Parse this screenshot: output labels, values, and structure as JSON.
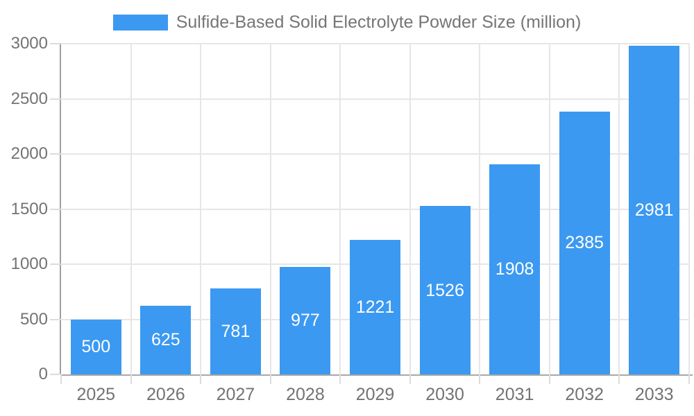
{
  "chart_data": {
    "type": "bar",
    "title": "Sulfide-Based Solid Electrolyte Powder Size (million)",
    "legend": {
      "position": "top",
      "entries": [
        {
          "label": "Sulfide-Based Solid Electrolyte Powder Size (million)",
          "color": "#3b99f1"
        }
      ]
    },
    "categories": [
      "2025",
      "2026",
      "2027",
      "2028",
      "2029",
      "2030",
      "2031",
      "2032",
      "2033"
    ],
    "series": [
      {
        "name": "Sulfide-Based Solid Electrolyte Powder Size (million)",
        "values": [
          500,
          625,
          781,
          977,
          1221,
          1526,
          1908,
          2385,
          2981
        ]
      }
    ],
    "bar_value_labels": [
      500,
      625,
      781,
      977,
      1221,
      1526,
      1908,
      2385,
      2981
    ],
    "xlabel": "",
    "ylabel": "",
    "ylim": [
      0,
      3000
    ],
    "yticks": [
      0,
      500,
      1000,
      1500,
      2000,
      2500,
      3000
    ],
    "grid": true,
    "colors": {
      "bar": "#3b99f1",
      "value_label": "#ffffff",
      "axis_text": "#737373",
      "grid_line": "#e6e6e6",
      "tick_line": "#dcdcdc",
      "axis_line": "#9e9e9e",
      "background": "#ffffff"
    }
  }
}
